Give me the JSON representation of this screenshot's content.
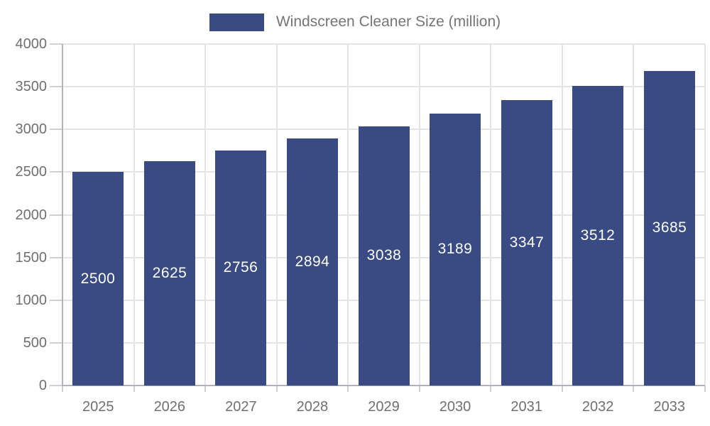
{
  "legend": {
    "label": "Windscreen Cleaner Size (million)"
  },
  "chart_data": {
    "type": "bar",
    "title": "",
    "xlabel": "",
    "ylabel": "",
    "series_name": "Windscreen Cleaner Size (million)",
    "categories": [
      "2025",
      "2026",
      "2027",
      "2028",
      "2029",
      "2030",
      "2031",
      "2032",
      "2033"
    ],
    "values": [
      2500,
      2625,
      2756,
      2894,
      3038,
      3189,
      3347,
      3512,
      3685
    ],
    "data_labels_visible": true,
    "ylim": [
      0,
      4000
    ],
    "yticks": [
      0,
      500,
      1000,
      1500,
      2000,
      2500,
      3000,
      3500,
      4000
    ],
    "grid": true,
    "legend_position": "top",
    "colors": {
      "bar": "#394B82",
      "bar_label": "#ffffff",
      "grid": "#e4e4e7",
      "axis": "#b0b3ba",
      "tick": "#cfcfd4",
      "axis_text": "#707070",
      "legend_text": "#757575"
    }
  }
}
